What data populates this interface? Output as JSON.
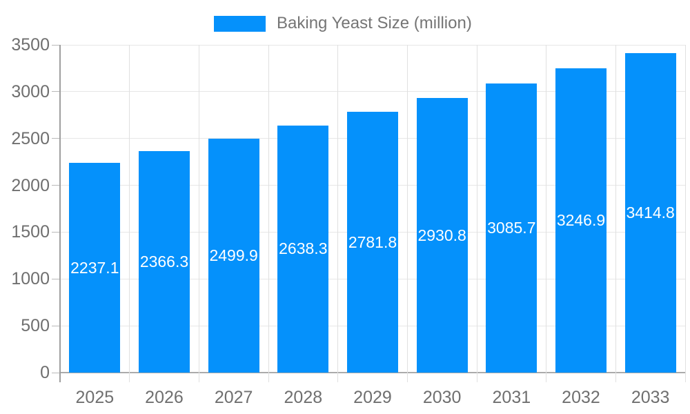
{
  "legend": {
    "label": "Baking Yeast Size (million)"
  },
  "chart_data": {
    "type": "bar",
    "title": "",
    "xlabel": "",
    "ylabel": "",
    "categories": [
      "2025",
      "2026",
      "2027",
      "2028",
      "2029",
      "2030",
      "2031",
      "2032",
      "2033"
    ],
    "series": [
      {
        "name": "Baking Yeast Size (million)",
        "values": [
          2237.1,
          2366.3,
          2499.9,
          2638.3,
          2781.8,
          2930.8,
          3085.7,
          3246.9,
          3414.8
        ]
      }
    ],
    "value_labels": [
      "2237.1",
      "2366.3",
      "2499.9",
      "2638.3",
      "2781.8",
      "2930.8",
      "3085.7",
      "3246.9",
      "3414.8"
    ],
    "ylim": [
      0,
      3500
    ],
    "yticks": [
      0,
      500,
      1000,
      1500,
      2000,
      2500,
      3000,
      3500
    ],
    "grid": true,
    "legend_position": "top",
    "colors": {
      "bar_fill": "#0591fb",
      "value_label_text": "#ffffff",
      "axis_text": "#6f6f6f",
      "legend_text": "#757575",
      "gridline": "#e6e6e6",
      "axis_line": "#9e9e9e",
      "baseline": "#ababab"
    }
  }
}
